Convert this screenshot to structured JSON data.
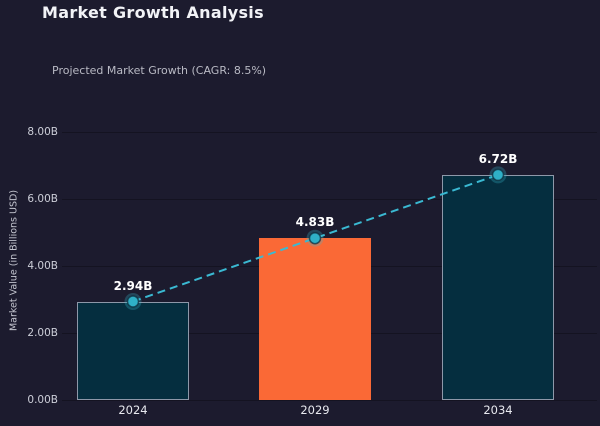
{
  "chart_data": {
    "type": "bar",
    "title": "Market Growth Analysis",
    "subtitle": "Projected Market Growth (CAGR: 8.5%)",
    "ylabel": "Market Value (in Billions USD)",
    "xlabel": "",
    "categories": [
      "2024",
      "2029",
      "2034"
    ],
    "values": [
      2.94,
      4.83,
      6.72
    ],
    "value_labels": [
      "2.94B",
      "4.83B",
      "6.72B"
    ],
    "yticks": [
      {
        "value": 0,
        "label": "0.00B"
      },
      {
        "value": 2,
        "label": "2.00B"
      },
      {
        "value": 4,
        "label": "4.00B"
      },
      {
        "value": 6,
        "label": "6.00B"
      },
      {
        "value": 8,
        "label": "8.00B"
      }
    ],
    "ylim": [
      0,
      8
    ],
    "grid": true,
    "legend": "none",
    "overlay_line": {
      "type": "line",
      "style": "dashed",
      "marker": "circle",
      "values": [
        2.94,
        4.83,
        6.72
      ]
    },
    "colors": {
      "background": "#1c1b2e",
      "bar_fills": [
        "#052e3f",
        "#fa6936",
        "#052e3f"
      ],
      "bar_borders": [
        "#8e98a9",
        "none",
        "#8e98a9"
      ],
      "line": "#3ab9d2",
      "marker": "#2fb0c7",
      "gridline": "rgba(0,0,0,0.28)",
      "title_text": "#f2f3f7",
      "subtitle_text": "#b9bac4",
      "tick_text": "#ccced8",
      "value_label_text": "#ffffff"
    }
  }
}
